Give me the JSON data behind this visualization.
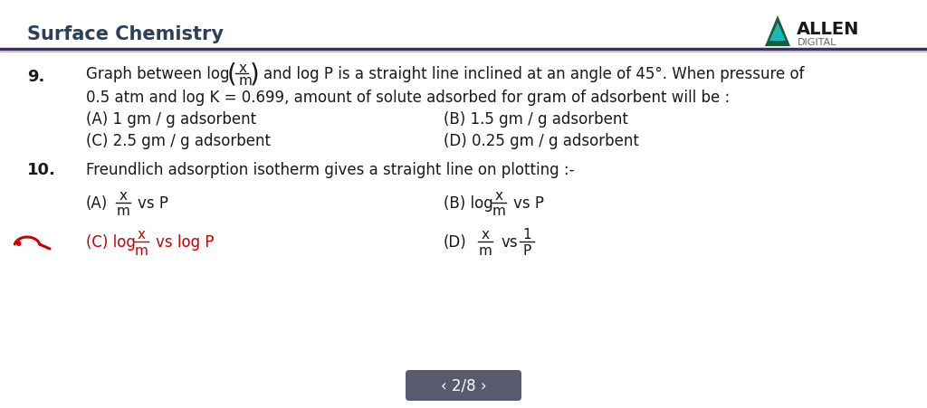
{
  "title": "Surface Chemistry",
  "title_color": "#2e4057",
  "background_color": "#ffffff",
  "q9_number": "9.",
  "q9_line2": "0.5 atm and log K = 0.699, amount of solute adsorbed for gram of adsorbent will be :",
  "q9_optA": "(A) 1 gm / g adsorbent",
  "q9_optB": "(B) 1.5 gm / g adsorbent",
  "q9_optC": "(C) 2.5 gm / g adsorbent",
  "q9_optD": "(D) 0.25 gm / g adsorbent",
  "q10_number": "10.",
  "q10_text": "Freundlich adsorption isotherm gives a straight line on plotting :-",
  "nav_text": "‹ 2/8 ›",
  "nav_bg": "#5a5a6e",
  "nav_text_color": "#ffffff",
  "header_line_color": "#3d2b6e",
  "correct_answer_color": "#cc0000",
  "correct_mark_color": "#cc0000",
  "text_color": "#1a1a1a"
}
